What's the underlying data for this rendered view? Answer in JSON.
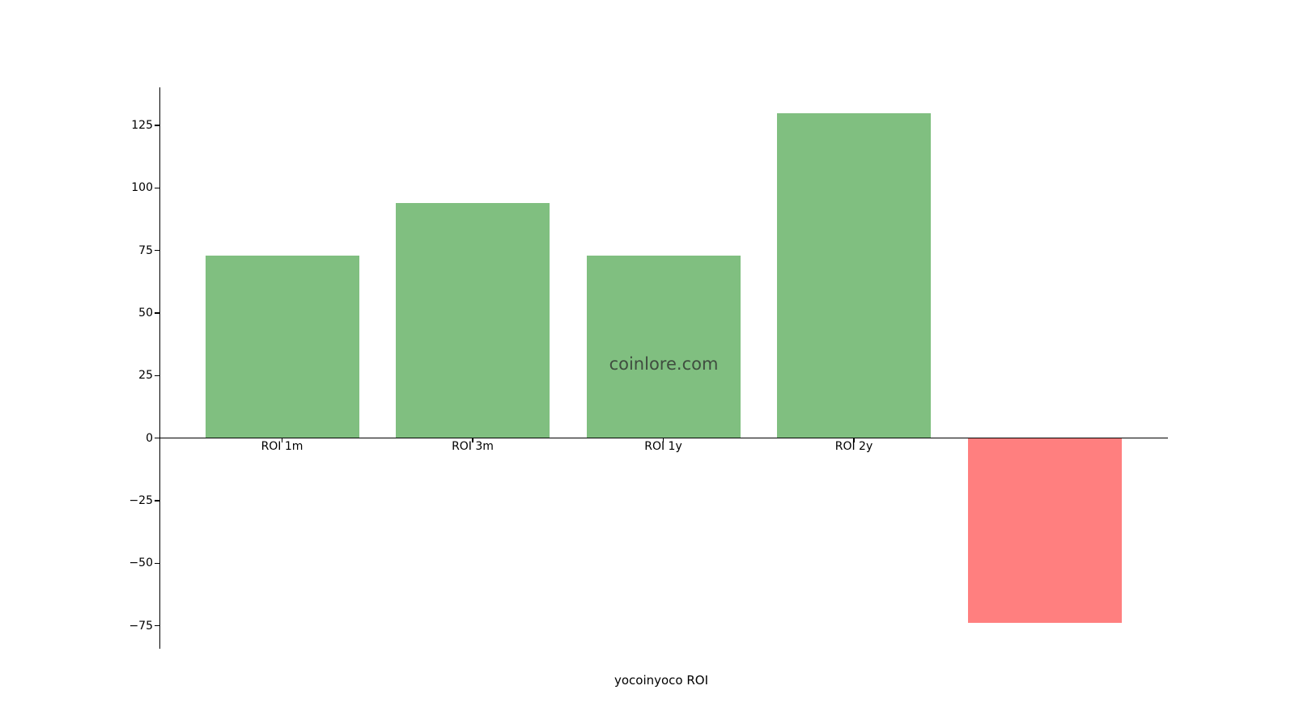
{
  "page": {
    "background_color": "#ffffff",
    "text_color": "#000000"
  },
  "watermark": {
    "text": "coinlore.com",
    "color": "#2d2d2d"
  },
  "chart_data": {
    "type": "bar",
    "title": "",
    "xlabel": "yocoinyoco ROI",
    "ylabel": "",
    "categories": [
      "ROI 1m",
      "ROI 3m",
      "ROI 1y",
      "ROI 2y",
      ""
    ],
    "values": [
      73,
      94,
      73,
      130,
      -74
    ],
    "bar_colors": [
      "#80bf80",
      "#80bf80",
      "#80bf80",
      "#80bf80",
      "#ff7f7f"
    ],
    "positive_color": "#80bf80",
    "negative_color": "#ff7f7f",
    "y_ticks": [
      125,
      100,
      75,
      50,
      25,
      0,
      -25,
      -50,
      -75
    ],
    "y_tick_labels": [
      "125",
      "100",
      "75",
      "50",
      "25",
      "0",
      "−25",
      "−50",
      "−75"
    ],
    "ylim": [
      -84.2,
      140.2
    ],
    "grid": false,
    "legend": false,
    "axis_color": "#000000"
  }
}
